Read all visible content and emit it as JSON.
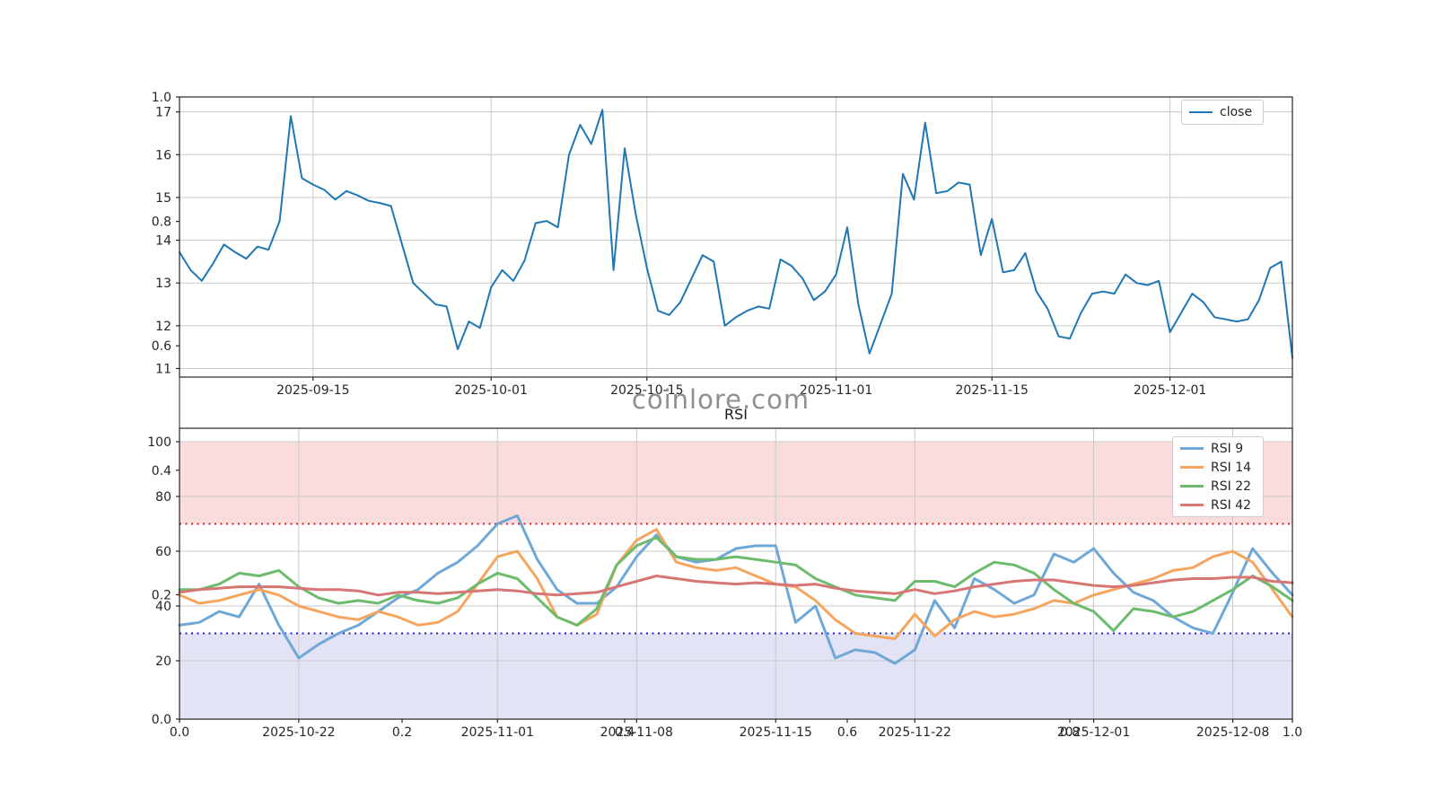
{
  "watermark_text": "coinlore.com",
  "rsi_title": "RSI",
  "colors": {
    "close": "#1f77b4",
    "rsi9": "#6fa8d6",
    "rsi14": "#f6a55e",
    "rsi22": "#6dbb6d",
    "rsi42": "#d87676",
    "band_overbought": "#fbdcdc",
    "band_oversold": "#e3e3f6",
    "hline_70": "#d21f1f",
    "hline_30": "#2121d2",
    "grid": "#c9c9c9",
    "spine": "#262626",
    "text": "#262626",
    "watermark": "#8f8f8f"
  },
  "top_legend": {
    "items": [
      {
        "label": "close",
        "color": "#1f77b4"
      }
    ]
  },
  "rsi_legend": {
    "items": [
      {
        "label": "RSI 9",
        "color": "#6fa8d6"
      },
      {
        "label": "RSI 14",
        "color": "#f6a55e"
      },
      {
        "label": "RSI 22",
        "color": "#6dbb6d"
      },
      {
        "label": "RSI 42",
        "color": "#d87676"
      }
    ]
  },
  "hidden_axes": {
    "y_tick_labels": [
      "1.0",
      "0.8",
      "0.6",
      "0.4",
      "0.2",
      "0.0"
    ],
    "x_tick_labels": [
      "0.0",
      "0.2",
      "0.4",
      "0.6",
      "0.8",
      "1.0"
    ]
  },
  "chart_data": [
    {
      "id": "price",
      "type": "line",
      "title": "",
      "grid": true,
      "legend_position": "upper right",
      "ylim": [
        10.8,
        17.35
      ],
      "y_ticks": [
        {
          "label": "17",
          "value": 17
        },
        {
          "label": "16",
          "value": 16
        },
        {
          "label": "15",
          "value": 15
        },
        {
          "label": "14",
          "value": 14
        },
        {
          "label": "13",
          "value": 13
        },
        {
          "label": "12",
          "value": 12
        },
        {
          "label": "11",
          "value": 11
        }
      ],
      "x_ticks": [
        {
          "label": "2025-09-15",
          "day": 12
        },
        {
          "label": "2025-10-01",
          "day": 28
        },
        {
          "label": "2025-10-15",
          "day": 42
        },
        {
          "label": "2025-11-01",
          "day": 59
        },
        {
          "label": "2025-11-15",
          "day": 73
        },
        {
          "label": "2025-12-01",
          "day": 89
        }
      ],
      "x_range_dates": [
        "2025-09-03",
        "2025-12-12"
      ],
      "series": [
        {
          "name": "close",
          "color": "#1f77b4",
          "width": 2,
          "values": [
            13.72,
            13.3,
            13.05,
            13.45,
            13.9,
            13.72,
            13.57,
            13.85,
            13.78,
            14.45,
            16.9,
            15.45,
            15.3,
            15.18,
            14.95,
            15.15,
            15.05,
            14.92,
            14.87,
            14.8,
            13.9,
            13.0,
            12.75,
            12.5,
            12.45,
            11.45,
            12.1,
            11.95,
            12.9,
            13.3,
            13.05,
            13.52,
            14.4,
            14.45,
            14.3,
            16.0,
            16.7,
            16.25,
            17.05,
            13.3,
            16.15,
            14.6,
            13.35,
            12.35,
            12.25,
            12.55,
            13.1,
            13.65,
            13.5,
            12.0,
            12.2,
            12.35,
            12.45,
            12.4,
            13.55,
            13.4,
            13.1,
            12.6,
            12.8,
            13.2,
            14.3,
            12.5,
            11.35,
            12.05,
            12.75,
            15.55,
            14.95,
            16.75,
            15.1,
            15.15,
            15.35,
            15.3,
            13.65,
            14.5,
            13.25,
            13.3,
            13.7,
            12.8,
            12.4,
            11.75,
            11.7,
            12.3,
            12.75,
            12.8,
            12.75,
            13.2,
            13.0,
            12.95,
            13.05,
            11.85,
            12.3,
            12.75,
            12.55,
            12.2,
            12.15,
            12.1,
            12.15,
            12.6,
            13.35,
            13.5,
            11.25
          ]
        }
      ]
    },
    {
      "id": "rsi",
      "type": "line",
      "title": "RSI",
      "grid": true,
      "legend_position": "upper right",
      "ylim": [
        0,
        105
      ],
      "bands": [
        {
          "from": 70,
          "to": 100,
          "color": "#fbdcdc",
          "name": "overbought-band"
        },
        {
          "from": 0,
          "to": 30,
          "color": "#e3e3f6",
          "name": "oversold-band"
        }
      ],
      "hlines": [
        {
          "value": 70,
          "color": "#d21f1f",
          "style": "dotted"
        },
        {
          "value": 30,
          "color": "#2121d2",
          "style": "dotted"
        }
      ],
      "y_ticks": [
        {
          "label": "100",
          "value": 100
        },
        {
          "label": "80",
          "value": 80
        },
        {
          "label": "60",
          "value": 60
        },
        {
          "label": "40",
          "value": 40
        },
        {
          "label": "20",
          "value": 20
        }
      ],
      "x_ticks": [
        {
          "label": "2025-10-22",
          "day": 6
        },
        {
          "label": "2025-11-01",
          "day": 16
        },
        {
          "label": "2025-11-08",
          "day": 23
        },
        {
          "label": "2025-11-15",
          "day": 30
        },
        {
          "label": "2025-11-22",
          "day": 37
        },
        {
          "label": "2025-12-01",
          "day": 46
        },
        {
          "label": "2025-12-08",
          "day": 53
        }
      ],
      "x_range_dates": [
        "2025-10-16",
        "2025-12-11"
      ],
      "series": [
        {
          "name": "RSI 9",
          "color": "#6fa8d6",
          "width": 3,
          "values": [
            33,
            34,
            38,
            36,
            48,
            33,
            21,
            26,
            30,
            33,
            38,
            43,
            46,
            52,
            56,
            62,
            70,
            73,
            57,
            46,
            41,
            41,
            47,
            58,
            66,
            58,
            56,
            57,
            61,
            62,
            62,
            34,
            40,
            21,
            24,
            23,
            19,
            24,
            42,
            32,
            50,
            46,
            41,
            44,
            59,
            56,
            61,
            52,
            45,
            42,
            36,
            32,
            30,
            45,
            61,
            52,
            44
          ]
        },
        {
          "name": "RSI 14",
          "color": "#f6a55e",
          "width": 3,
          "values": [
            44,
            41,
            42,
            44,
            46,
            44,
            40,
            38,
            36,
            35,
            38,
            36,
            33,
            34,
            38,
            48,
            58,
            60,
            50,
            36,
            33,
            37,
            55,
            64,
            68,
            56,
            54,
            53,
            54,
            51,
            48,
            47,
            42,
            35,
            30,
            29,
            28,
            37,
            29,
            35,
            38,
            36,
            37,
            39,
            42,
            41,
            44,
            46,
            48,
            50,
            53,
            54,
            58,
            60,
            56,
            46,
            36
          ]
        },
        {
          "name": "RSI 22",
          "color": "#6dbb6d",
          "width": 3,
          "values": [
            46,
            46,
            48,
            52,
            51,
            53,
            47,
            43,
            41,
            42,
            41,
            44,
            42,
            41,
            43,
            48,
            52,
            50,
            43,
            36,
            33,
            39,
            55,
            62,
            65,
            58,
            57,
            57,
            58,
            57,
            56,
            55,
            50,
            47,
            44,
            43,
            42,
            49,
            49,
            47,
            52,
            56,
            55,
            52,
            46,
            41,
            38,
            31,
            39,
            38,
            36,
            38,
            42,
            46,
            51,
            47,
            42
          ]
        },
        {
          "name": "RSI 42",
          "color": "#d87676",
          "width": 3,
          "values": [
            45,
            46,
            46.5,
            47,
            47,
            47,
            46.5,
            46,
            46,
            45.5,
            44,
            45,
            45,
            44.5,
            45,
            45.5,
            46,
            45.5,
            44.5,
            44,
            44.5,
            45,
            47,
            49,
            51,
            50,
            49,
            48.5,
            48,
            48.5,
            48,
            47.5,
            48,
            46.5,
            45.5,
            45,
            44.5,
            46,
            44.5,
            45.5,
            47,
            48,
            49,
            49.5,
            49.5,
            48.5,
            47.5,
            47,
            47.5,
            48.5,
            49.5,
            50,
            50,
            50.5,
            50.5,
            49,
            48.5
          ]
        }
      ]
    }
  ]
}
